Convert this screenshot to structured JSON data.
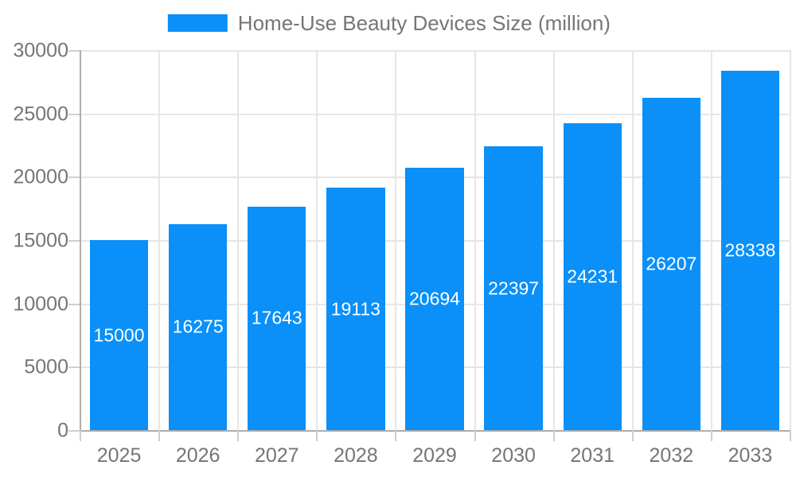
{
  "legend": {
    "label": "Home-Use Beauty Devices Size (million)"
  },
  "chart_data": {
    "type": "bar",
    "title": "Home-Use Beauty Devices Size (million)",
    "categories": [
      "2025",
      "2026",
      "2027",
      "2028",
      "2029",
      "2030",
      "2031",
      "2032",
      "2033"
    ],
    "values": [
      15000,
      16275,
      17643,
      19113,
      20694,
      22397,
      24231,
      26207,
      28338
    ],
    "series_name": "Home-Use Beauty Devices Size (million)",
    "xlabel": "",
    "ylabel": "",
    "ylim": [
      0,
      30000
    ],
    "ytick_step": 5000,
    "ytick_labels": [
      "0",
      "5000",
      "10000",
      "15000",
      "20000",
      "25000",
      "30000"
    ],
    "grid": true,
    "legend_position": "top-center",
    "value_label_style": "white-centered-inside-bar",
    "bar_fraction_of_slot": 0.74
  },
  "colors": {
    "bar": "#0a90f8",
    "grid": "#e6e6e6",
    "axis": "#adadad",
    "tick": "#cfcfcf",
    "text": "#757575",
    "value_label": "#ffffff",
    "background": "#ffffff"
  }
}
